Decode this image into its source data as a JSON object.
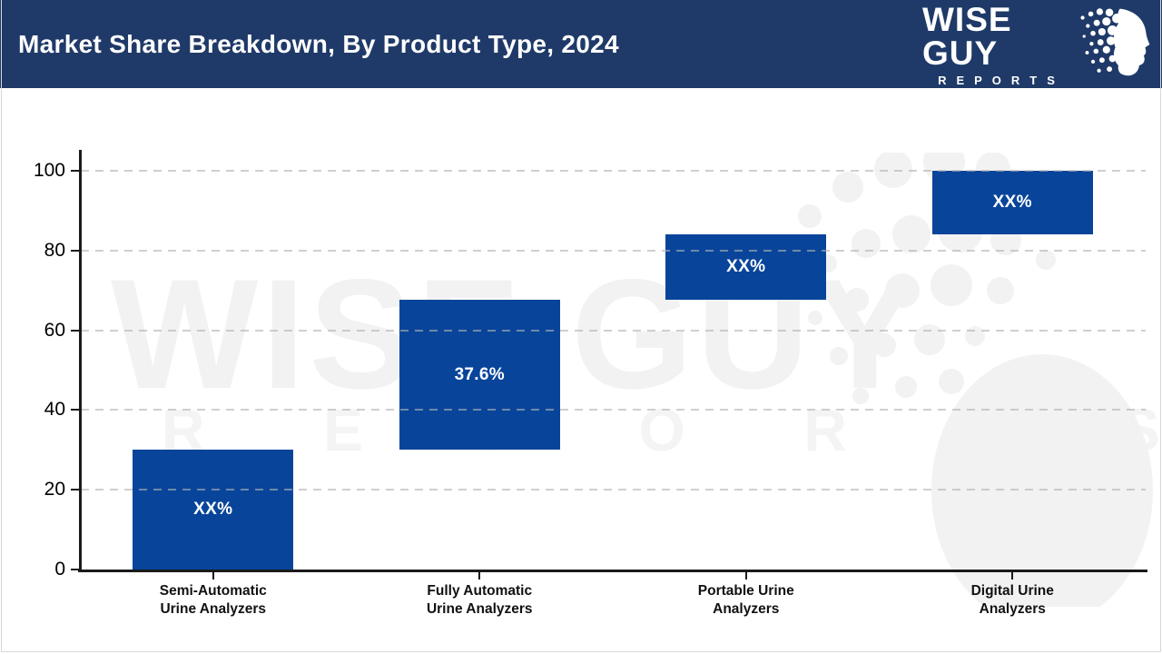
{
  "header": {
    "title": "Market Share Breakdown, By Product Type, 2024",
    "bg_color": "#1f3a68",
    "logo": {
      "line1": "WISE GUY",
      "line2": "REPORTS"
    }
  },
  "watermark": {
    "line1": "WISE GUY",
    "line2": "R E P O R T S"
  },
  "chart_data": {
    "type": "bar",
    "subtype": "floating-segment (waterfall-style market share)",
    "title": "Market Share Breakdown, By Product Type, 2024",
    "categories": [
      "Semi-Automatic Urine Analyzers",
      "Fully Automatic Urine Analyzers",
      "Portable Urine Analyzers",
      "Digital Urine Analyzers"
    ],
    "segments": [
      {
        "category_line1": "Semi-Automatic",
        "category_line2": "Urine Analyzers",
        "start": 0,
        "end": 30,
        "label": "XX%"
      },
      {
        "category_line1": "Fully Automatic",
        "category_line2": "Urine Analyzers",
        "start": 30,
        "end": 67.6,
        "label": "37.6%"
      },
      {
        "category_line1": "Portable Urine",
        "category_line2": "Analyzers",
        "start": 67.6,
        "end": 84,
        "label": "XX%"
      },
      {
        "category_line1": "Digital Urine",
        "category_line2": "Analyzers",
        "start": 84,
        "end": 100,
        "label": "XX%"
      }
    ],
    "revealed_value": "37.6%",
    "masked_value_placeholder": "XX%",
    "xlabel": "",
    "ylabel": "",
    "ylim": [
      0,
      100
    ],
    "yticks": [
      0,
      20,
      40,
      60,
      80,
      100
    ],
    "grid": "horizontal dashed, drawn over bars",
    "legend": "none",
    "bar_color": "#08459a",
    "grid_color": "#c9c9c9",
    "header_color": "#1f3a68",
    "watermark_color": "#f2f2f2"
  }
}
